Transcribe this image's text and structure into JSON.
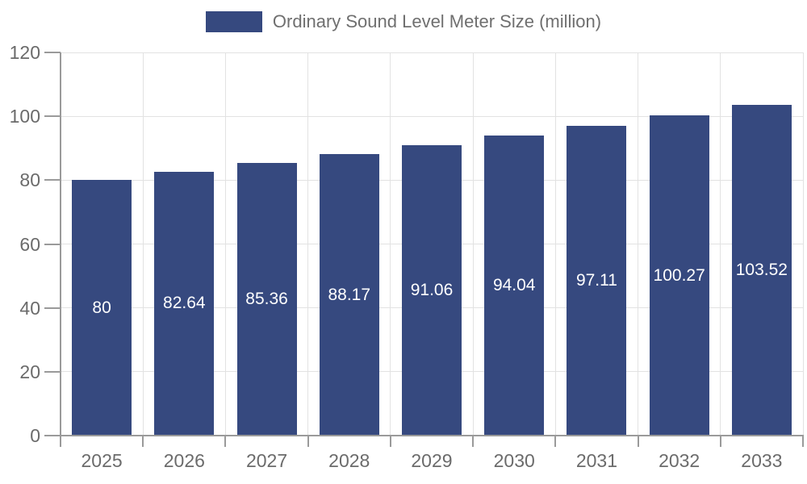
{
  "legend": {
    "label": "Ordinary Sound Level Meter Size (million)"
  },
  "chart_data": {
    "type": "bar",
    "title": "Ordinary Sound Level Meter Size (million)",
    "xlabel": "",
    "ylabel": "",
    "categories": [
      "2025",
      "2026",
      "2027",
      "2028",
      "2029",
      "2030",
      "2031",
      "2032",
      "2033"
    ],
    "values": [
      80,
      82.64,
      85.36,
      88.17,
      91.06,
      94.04,
      97.11,
      100.27,
      103.52
    ],
    "bar_labels": [
      "80",
      "82.64",
      "85.36",
      "88.17",
      "91.06",
      "94.04",
      "97.11",
      "100.27",
      "103.52"
    ],
    "ylim": [
      0,
      120
    ],
    "yticks": [
      0,
      20,
      40,
      60,
      80,
      100,
      120
    ],
    "grid": true,
    "legend_position": "top",
    "colors": {
      "bar": "#36497F",
      "bar_label": "#FFFFFF",
      "grid": "#E2E2E2",
      "axis": "#9A9A9A",
      "tick_text": "#6B6B6B",
      "legend_text": "#6F6F6F",
      "background": "#FFFFFF"
    }
  }
}
